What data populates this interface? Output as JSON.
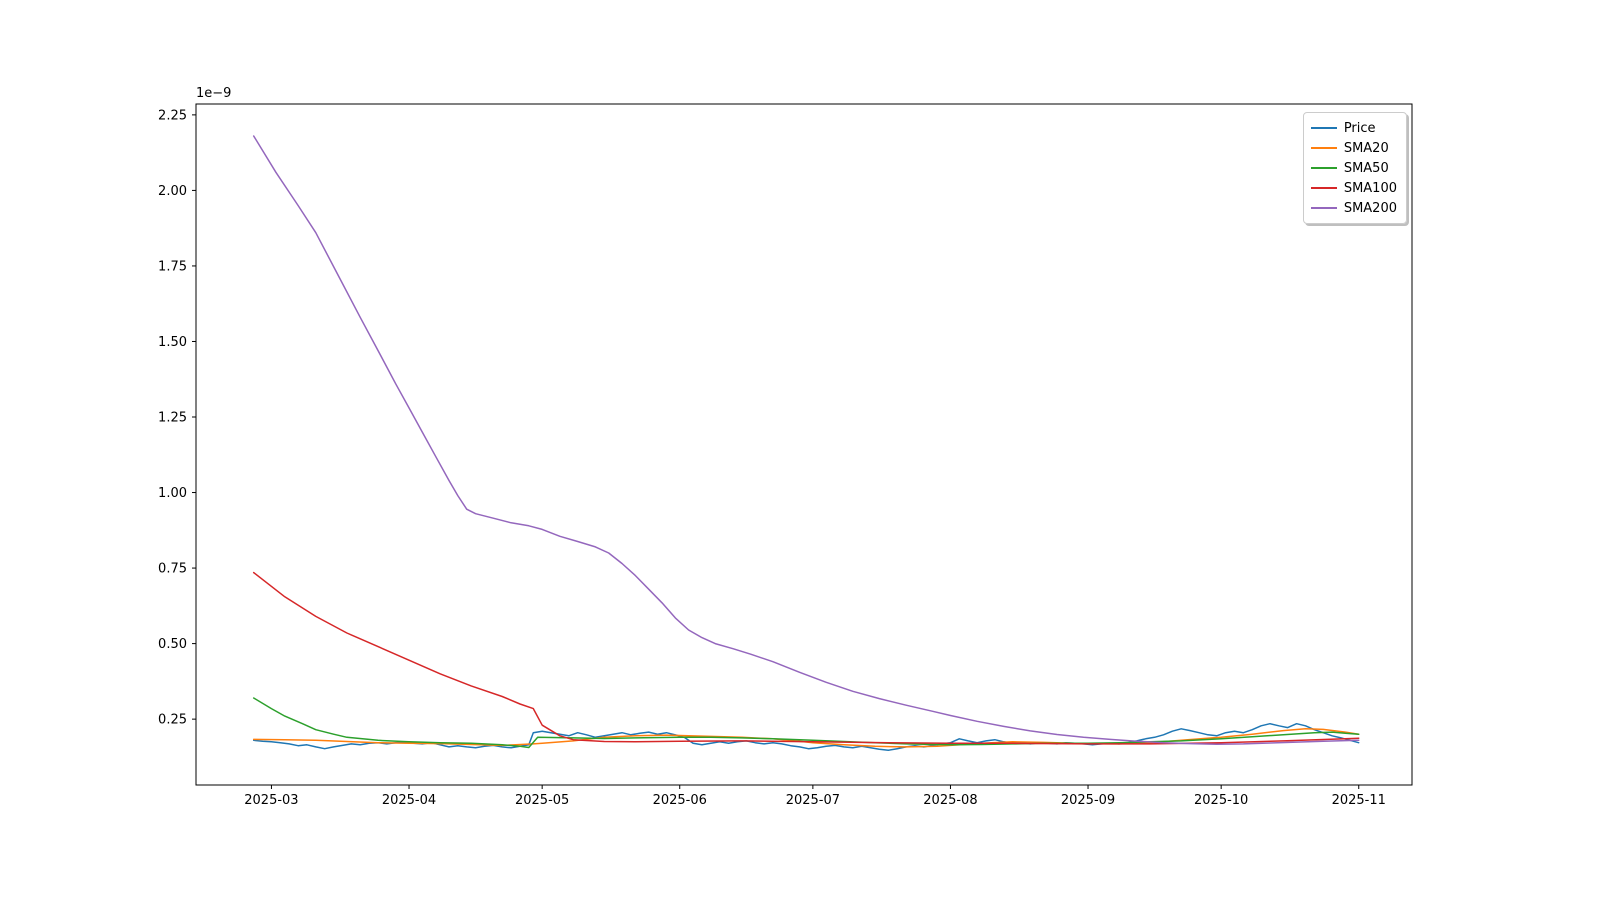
{
  "figure": {
    "background": "#ffffff"
  },
  "chart_data": {
    "type": "line",
    "title": "",
    "xlabel": "",
    "ylabel": "",
    "grid": false,
    "legend_position": "upper right",
    "y_axis": {
      "offset_label": "1e−9",
      "lim": [
        0.032,
        2.286
      ],
      "ticks": [
        0.25,
        0.5,
        0.75,
        1.0,
        1.25,
        1.5,
        1.75,
        2.0,
        2.25
      ],
      "tick_labels": [
        "0.25",
        "0.50",
        "0.75",
        "1.00",
        "1.25",
        "1.50",
        "1.75",
        "2.00",
        "2.25"
      ]
    },
    "x_axis": {
      "unit": "days since 2025-01-01",
      "lim": [
        42,
        316
      ],
      "tick_days": [
        59,
        90,
        120,
        151,
        181,
        212,
        243,
        273,
        304
      ],
      "tick_labels": [
        "2025-03",
        "2025-04",
        "2025-05",
        "2025-06",
        "2025-07",
        "2025-08",
        "2025-09",
        "2025-10",
        "2025-11"
      ]
    },
    "series": [
      {
        "name": "Price",
        "color": "#1f77b4",
        "points": [
          [
            55,
            0.18
          ],
          [
            57,
            0.177
          ],
          [
            59,
            0.175
          ],
          [
            61,
            0.172
          ],
          [
            63,
            0.168
          ],
          [
            65,
            0.162
          ],
          [
            67,
            0.165
          ],
          [
            69,
            0.158
          ],
          [
            71,
            0.152
          ],
          [
            73,
            0.158
          ],
          [
            75,
            0.163
          ],
          [
            77,
            0.168
          ],
          [
            79,
            0.165
          ],
          [
            81,
            0.17
          ],
          [
            83,
            0.172
          ],
          [
            85,
            0.168
          ],
          [
            87,
            0.172
          ],
          [
            89,
            0.175
          ],
          [
            91,
            0.17
          ],
          [
            93,
            0.168
          ],
          [
            95,
            0.172
          ],
          [
            97,
            0.165
          ],
          [
            99,
            0.158
          ],
          [
            101,
            0.162
          ],
          [
            103,
            0.158
          ],
          [
            105,
            0.155
          ],
          [
            107,
            0.16
          ],
          [
            109,
            0.163
          ],
          [
            111,
            0.158
          ],
          [
            113,
            0.155
          ],
          [
            115,
            0.16
          ],
          [
            117,
            0.165
          ],
          [
            118,
            0.205
          ],
          [
            120,
            0.21
          ],
          [
            122,
            0.205
          ],
          [
            124,
            0.2
          ],
          [
            126,
            0.195
          ],
          [
            128,
            0.205
          ],
          [
            130,
            0.198
          ],
          [
            132,
            0.19
          ],
          [
            134,
            0.195
          ],
          [
            136,
            0.2
          ],
          [
            138,
            0.205
          ],
          [
            140,
            0.198
          ],
          [
            142,
            0.203
          ],
          [
            144,
            0.207
          ],
          [
            146,
            0.2
          ],
          [
            148,
            0.205
          ],
          [
            150,
            0.198
          ],
          [
            152,
            0.19
          ],
          [
            154,
            0.17
          ],
          [
            156,
            0.165
          ],
          [
            158,
            0.17
          ],
          [
            160,
            0.175
          ],
          [
            162,
            0.17
          ],
          [
            164,
            0.175
          ],
          [
            166,
            0.178
          ],
          [
            168,
            0.172
          ],
          [
            170,
            0.168
          ],
          [
            172,
            0.172
          ],
          [
            174,
            0.168
          ],
          [
            176,
            0.162
          ],
          [
            178,
            0.158
          ],
          [
            180,
            0.152
          ],
          [
            182,
            0.155
          ],
          [
            184,
            0.16
          ],
          [
            186,
            0.163
          ],
          [
            188,
            0.158
          ],
          [
            190,
            0.155
          ],
          [
            192,
            0.16
          ],
          [
            194,
            0.155
          ],
          [
            196,
            0.15
          ],
          [
            198,
            0.147
          ],
          [
            200,
            0.152
          ],
          [
            202,
            0.158
          ],
          [
            204,
            0.162
          ],
          [
            206,
            0.158
          ],
          [
            208,
            0.163
          ],
          [
            210,
            0.168
          ],
          [
            212,
            0.172
          ],
          [
            214,
            0.185
          ],
          [
            216,
            0.178
          ],
          [
            218,
            0.172
          ],
          [
            220,
            0.178
          ],
          [
            222,
            0.182
          ],
          [
            224,
            0.175
          ],
          [
            226,
            0.17
          ],
          [
            228,
            0.172
          ],
          [
            230,
            0.168
          ],
          [
            232,
            0.172
          ],
          [
            234,
            0.17
          ],
          [
            236,
            0.168
          ],
          [
            238,
            0.172
          ],
          [
            240,
            0.17
          ],
          [
            242,
            0.168
          ],
          [
            244,
            0.165
          ],
          [
            246,
            0.168
          ],
          [
            248,
            0.17
          ],
          [
            250,
            0.168
          ],
          [
            252,
            0.172
          ],
          [
            254,
            0.178
          ],
          [
            256,
            0.185
          ],
          [
            258,
            0.19
          ],
          [
            260,
            0.198
          ],
          [
            262,
            0.21
          ],
          [
            264,
            0.218
          ],
          [
            266,
            0.212
          ],
          [
            268,
            0.205
          ],
          [
            270,
            0.198
          ],
          [
            272,
            0.195
          ],
          [
            274,
            0.205
          ],
          [
            276,
            0.21
          ],
          [
            278,
            0.205
          ],
          [
            280,
            0.215
          ],
          [
            282,
            0.228
          ],
          [
            284,
            0.235
          ],
          [
            286,
            0.228
          ],
          [
            288,
            0.222
          ],
          [
            290,
            0.235
          ],
          [
            292,
            0.228
          ],
          [
            294,
            0.215
          ],
          [
            296,
            0.205
          ],
          [
            298,
            0.195
          ],
          [
            300,
            0.188
          ],
          [
            302,
            0.18
          ],
          [
            304,
            0.172
          ]
        ]
      },
      {
        "name": "SMA20",
        "color": "#ff7f0e",
        "points": [
          [
            55,
            0.183
          ],
          [
            62,
            0.182
          ],
          [
            69,
            0.18
          ],
          [
            76,
            0.176
          ],
          [
            83,
            0.172
          ],
          [
            90,
            0.17
          ],
          [
            97,
            0.169
          ],
          [
            104,
            0.166
          ],
          [
            111,
            0.163
          ],
          [
            118,
            0.168
          ],
          [
            120,
            0.17
          ],
          [
            127,
            0.178
          ],
          [
            134,
            0.19
          ],
          [
            141,
            0.195
          ],
          [
            148,
            0.197
          ],
          [
            151,
            0.196
          ],
          [
            158,
            0.193
          ],
          [
            165,
            0.19
          ],
          [
            172,
            0.185
          ],
          [
            179,
            0.175
          ],
          [
            181,
            0.172
          ],
          [
            188,
            0.165
          ],
          [
            195,
            0.16
          ],
          [
            202,
            0.158
          ],
          [
            209,
            0.16
          ],
          [
            212,
            0.163
          ],
          [
            219,
            0.17
          ],
          [
            226,
            0.175
          ],
          [
            233,
            0.173
          ],
          [
            240,
            0.17
          ],
          [
            243,
            0.169
          ],
          [
            250,
            0.168
          ],
          [
            257,
            0.172
          ],
          [
            264,
            0.18
          ],
          [
            271,
            0.188
          ],
          [
            273,
            0.19
          ],
          [
            280,
            0.2
          ],
          [
            287,
            0.212
          ],
          [
            292,
            0.218
          ],
          [
            296,
            0.216
          ],
          [
            301,
            0.207
          ],
          [
            304,
            0.2
          ]
        ]
      },
      {
        "name": "SMA50",
        "color": "#2ca02c",
        "points": [
          [
            55,
            0.32
          ],
          [
            59,
            0.285
          ],
          [
            62,
            0.26
          ],
          [
            66,
            0.235
          ],
          [
            69,
            0.215
          ],
          [
            73,
            0.2
          ],
          [
            76,
            0.19
          ],
          [
            83,
            0.18
          ],
          [
            90,
            0.175
          ],
          [
            97,
            0.172
          ],
          [
            104,
            0.17
          ],
          [
            111,
            0.165
          ],
          [
            115,
            0.16
          ],
          [
            117,
            0.156
          ],
          [
            119,
            0.19
          ],
          [
            127,
            0.188
          ],
          [
            134,
            0.186
          ],
          [
            141,
            0.188
          ],
          [
            151,
            0.19
          ],
          [
            158,
            0.19
          ],
          [
            165,
            0.188
          ],
          [
            172,
            0.185
          ],
          [
            181,
            0.18
          ],
          [
            188,
            0.176
          ],
          [
            195,
            0.172
          ],
          [
            202,
            0.168
          ],
          [
            212,
            0.165
          ],
          [
            219,
            0.166
          ],
          [
            226,
            0.168
          ],
          [
            233,
            0.17
          ],
          [
            243,
            0.17
          ],
          [
            250,
            0.172
          ],
          [
            257,
            0.175
          ],
          [
            264,
            0.178
          ],
          [
            273,
            0.185
          ],
          [
            280,
            0.192
          ],
          [
            287,
            0.198
          ],
          [
            294,
            0.205
          ],
          [
            298,
            0.207
          ],
          [
            301,
            0.203
          ],
          [
            304,
            0.2
          ]
        ]
      },
      {
        "name": "SMA100",
        "color": "#d62728",
        "points": [
          [
            55,
            0.735
          ],
          [
            62,
            0.655
          ],
          [
            69,
            0.59
          ],
          [
            76,
            0.535
          ],
          [
            83,
            0.49
          ],
          [
            90,
            0.445
          ],
          [
            97,
            0.4
          ],
          [
            104,
            0.36
          ],
          [
            111,
            0.325
          ],
          [
            115,
            0.3
          ],
          [
            118,
            0.285
          ],
          [
            120,
            0.23
          ],
          [
            124,
            0.195
          ],
          [
            127,
            0.182
          ],
          [
            134,
            0.176
          ],
          [
            141,
            0.175
          ],
          [
            151,
            0.177
          ],
          [
            165,
            0.178
          ],
          [
            181,
            0.175
          ],
          [
            198,
            0.172
          ],
          [
            212,
            0.17
          ],
          [
            226,
            0.17
          ],
          [
            243,
            0.168
          ],
          [
            257,
            0.168
          ],
          [
            273,
            0.172
          ],
          [
            287,
            0.178
          ],
          [
            301,
            0.185
          ],
          [
            304,
            0.187
          ]
        ]
      },
      {
        "name": "SMA200",
        "color": "#9467bd",
        "points": [
          [
            55,
            2.18
          ],
          [
            60,
            2.06
          ],
          [
            65,
            1.95
          ],
          [
            69,
            1.86
          ],
          [
            74,
            1.72
          ],
          [
            79,
            1.58
          ],
          [
            83,
            1.47
          ],
          [
            87,
            1.36
          ],
          [
            90,
            1.28
          ],
          [
            93,
            1.2
          ],
          [
            96,
            1.12
          ],
          [
            99,
            1.04
          ],
          [
            101,
            0.99
          ],
          [
            103,
            0.945
          ],
          [
            105,
            0.93
          ],
          [
            109,
            0.915
          ],
          [
            113,
            0.9
          ],
          [
            117,
            0.89
          ],
          [
            120,
            0.878
          ],
          [
            124,
            0.855
          ],
          [
            128,
            0.838
          ],
          [
            132,
            0.82
          ],
          [
            135,
            0.8
          ],
          [
            138,
            0.765
          ],
          [
            141,
            0.725
          ],
          [
            144,
            0.68
          ],
          [
            147,
            0.635
          ],
          [
            150,
            0.585
          ],
          [
            153,
            0.545
          ],
          [
            156,
            0.52
          ],
          [
            159,
            0.5
          ],
          [
            163,
            0.483
          ],
          [
            167,
            0.465
          ],
          [
            172,
            0.44
          ],
          [
            178,
            0.405
          ],
          [
            184,
            0.372
          ],
          [
            190,
            0.342
          ],
          [
            196,
            0.318
          ],
          [
            202,
            0.296
          ],
          [
            208,
            0.276
          ],
          [
            212,
            0.262
          ],
          [
            218,
            0.243
          ],
          [
            224,
            0.226
          ],
          [
            230,
            0.211
          ],
          [
            236,
            0.199
          ],
          [
            242,
            0.19
          ],
          [
            248,
            0.183
          ],
          [
            254,
            0.177
          ],
          [
            260,
            0.172
          ],
          [
            266,
            0.169
          ],
          [
            272,
            0.167
          ],
          [
            278,
            0.168
          ],
          [
            284,
            0.171
          ],
          [
            290,
            0.174
          ],
          [
            296,
            0.177
          ],
          [
            301,
            0.179
          ],
          [
            304,
            0.18
          ]
        ]
      }
    ]
  }
}
